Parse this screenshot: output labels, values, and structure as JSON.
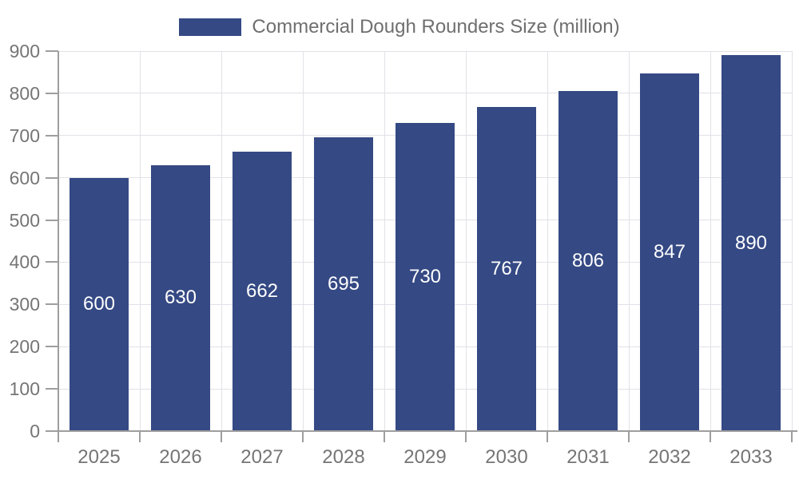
{
  "chart_data": {
    "type": "bar",
    "title": "Commercial Dough Rounders Size (million)",
    "legend": {
      "label": "Commercial Dough Rounders Size (million)",
      "position": "top-center"
    },
    "categories": [
      "2025",
      "2026",
      "2027",
      "2028",
      "2029",
      "2030",
      "2031",
      "2032",
      "2033"
    ],
    "values": [
      600,
      630,
      662,
      695,
      730,
      767,
      806,
      847,
      890
    ],
    "xlabel": "",
    "ylabel": "",
    "ylim": [
      0,
      900
    ],
    "yticks": [
      0,
      100,
      200,
      300,
      400,
      500,
      600,
      700,
      800,
      900
    ],
    "grid": true,
    "legend_visible": true,
    "colors": {
      "bar": "#354984",
      "bar_label": "#ffffff",
      "axis_line": "#9e9e9e",
      "grid_line": "#e1e1e8",
      "tick_label": "#757575",
      "legend_text": "#6f6f6f",
      "background": "#ffffff"
    }
  }
}
